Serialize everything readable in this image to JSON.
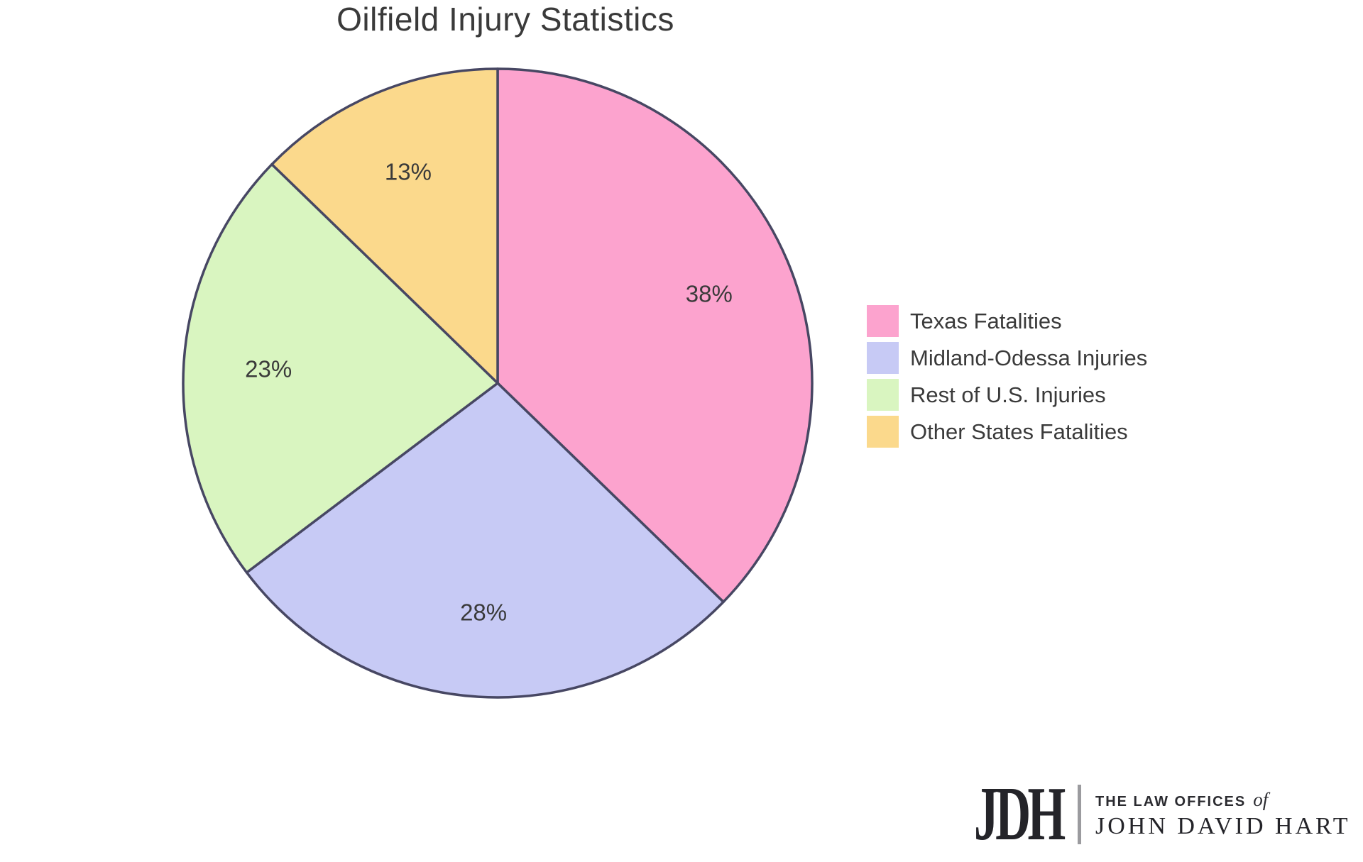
{
  "title": "Oilfield Injury Statistics",
  "chart_data": {
    "type": "pie",
    "title": "Oilfield Injury Statistics",
    "unit": "%",
    "slices": [
      {
        "label": "Texas Fatalities",
        "value": 38,
        "display_label": "38%",
        "color": "#FCA3CE"
      },
      {
        "label": "Midland-Odessa Injuries",
        "value": 28,
        "display_label": "28%",
        "color": "#C7CAF5"
      },
      {
        "label": "Rest of U.S. Injuries",
        "value": 23,
        "display_label": "23%",
        "color": "#D9F5C0"
      },
      {
        "label": "Other States Fatalities",
        "value": 13,
        "display_label": "13%",
        "color": "#FBD98C"
      }
    ],
    "start_angle_deg": 0,
    "direction": "clockwise",
    "slice_border_color": "#474763",
    "slice_label_color": "#3A3A3A",
    "legend_position": "right"
  },
  "branding": {
    "monogram": "JDH",
    "tagline_caps": "THE LAW OFFICES",
    "tagline_of": "of",
    "name": "JOHN DAVID HART"
  },
  "colors": {
    "background": "#FFFFFF",
    "title_text": "#3A3A3A",
    "legend_text": "#3A3A3A",
    "pie_outline": "#474763",
    "logo_text": "#242429",
    "logo_divider": "#9B9B9F"
  }
}
